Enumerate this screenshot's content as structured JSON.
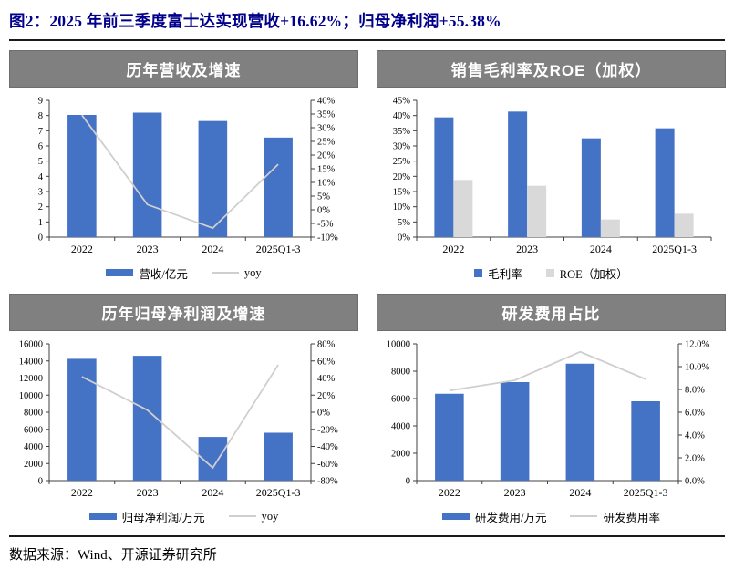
{
  "figure": {
    "title": "图2：2025 年前三季度富士达实现营收+16.62%；归母净利润+55.38%",
    "source": "数据来源：Wind、开源证券研究所"
  },
  "colors": {
    "accent_blue": "#4472C4",
    "bar_gray": "#D9D9D9",
    "line_gray": "#D0CECE",
    "header_bg": "#808080",
    "header_text": "#FFFFFF",
    "title_text": "#00008B"
  },
  "chart_data": [
    {
      "id": "revenue-growth",
      "type": "bar",
      "title": "历年营收及增速",
      "categories": [
        "2022",
        "2023",
        "2024",
        "2025Q1-3"
      ],
      "series": [
        {
          "name": "营收/亿元",
          "type": "bar",
          "axis": "left",
          "color": "#4472C4",
          "values": [
            8.04,
            8.19,
            7.64,
            6.55
          ]
        },
        {
          "name": "yoy",
          "type": "line",
          "axis": "right",
          "color": "#D0CECE",
          "values": [
            34.6,
            1.9,
            -6.7,
            16.62
          ]
        }
      ],
      "left_axis": {
        "min": 0,
        "max": 9,
        "tick_values": [
          0,
          1,
          2,
          3,
          4,
          5,
          6,
          7,
          8,
          9
        ],
        "tick_labels": [
          "0",
          "1",
          "2",
          "3",
          "4",
          "5",
          "6",
          "7",
          "8",
          "9"
        ]
      },
      "right_axis": {
        "min": -10,
        "max": 40,
        "tick_values": [
          -10,
          -5,
          0,
          5,
          10,
          15,
          20,
          25,
          30,
          35,
          40
        ],
        "tick_labels": [
          "-10%",
          "-5%",
          "0%",
          "5%",
          "10%",
          "15%",
          "20%",
          "25%",
          "30%",
          "35%",
          "40%"
        ]
      },
      "legend": [
        {
          "label": "营收/亿元",
          "swatch": "bar",
          "color": "#4472C4"
        },
        {
          "label": "yoy",
          "swatch": "line",
          "color": "#D0CECE"
        }
      ]
    },
    {
      "id": "margin-roe",
      "type": "bar",
      "title": "销售毛利率及ROE（加权）",
      "categories": [
        "2022",
        "2023",
        "2024",
        "2025Q1-3"
      ],
      "series": [
        {
          "name": "毛利率",
          "type": "bar",
          "axis": "left",
          "color": "#4472C4",
          "values": [
            39.4,
            41.3,
            32.5,
            35.8
          ]
        },
        {
          "name": "ROE（加权）",
          "type": "bar",
          "axis": "left",
          "color": "#D9D9D9",
          "values": [
            18.8,
            16.9,
            5.8,
            7.7
          ]
        }
      ],
      "left_axis": {
        "min": 0,
        "max": 45,
        "tick_values": [
          0,
          5,
          10,
          15,
          20,
          25,
          30,
          35,
          40,
          45
        ],
        "tick_labels": [
          "0%",
          "5%",
          "10%",
          "15%",
          "20%",
          "25%",
          "30%",
          "35%",
          "40%",
          "45%"
        ]
      },
      "right_axis": null,
      "legend": [
        {
          "label": "毛利率",
          "swatch": "square",
          "color": "#4472C4"
        },
        {
          "label": "ROE（加权）",
          "swatch": "square",
          "color": "#D9D9D9"
        }
      ]
    },
    {
      "id": "net-profit-growth",
      "type": "bar",
      "title": "历年归母净利润及增速",
      "categories": [
        "2022",
        "2023",
        "2024",
        "2025Q1-3"
      ],
      "series": [
        {
          "name": "归母净利润/万元",
          "type": "bar",
          "axis": "left",
          "color": "#4472C4",
          "values": [
            14250,
            14600,
            5110,
            5600
          ]
        },
        {
          "name": "yoy",
          "type": "line",
          "axis": "right",
          "color": "#D0CECE",
          "values": [
            41.5,
            2.5,
            -65.0,
            55.38
          ]
        }
      ],
      "left_axis": {
        "min": 0,
        "max": 16000,
        "tick_values": [
          0,
          2000,
          4000,
          6000,
          8000,
          10000,
          12000,
          14000,
          16000
        ],
        "tick_labels": [
          "0",
          "2000",
          "4000",
          "6000",
          "8000",
          "10000",
          "12000",
          "14000",
          "16000"
        ]
      },
      "right_axis": {
        "min": -80,
        "max": 80,
        "tick_values": [
          -80,
          -60,
          -40,
          -20,
          0,
          20,
          40,
          60,
          80
        ],
        "tick_labels": [
          "-80%",
          "-60%",
          "-40%",
          "-20%",
          "0%",
          "20%",
          "40%",
          "60%",
          "80%"
        ]
      },
      "legend": [
        {
          "label": "归母净利润/万元",
          "swatch": "bar",
          "color": "#4472C4"
        },
        {
          "label": "yoy",
          "swatch": "line",
          "color": "#D0CECE"
        }
      ]
    },
    {
      "id": "rnd-expense",
      "type": "bar",
      "title": "研发费用占比",
      "categories": [
        "2022",
        "2023",
        "2024",
        "2025Q1-3"
      ],
      "series": [
        {
          "name": "研发费用/万元",
          "type": "bar",
          "axis": "left",
          "color": "#4472C4",
          "values": [
            6350,
            7200,
            8550,
            5800
          ]
        },
        {
          "name": "研发费用率",
          "type": "line",
          "axis": "right",
          "color": "#D0CECE",
          "values": [
            7.9,
            8.8,
            11.3,
            8.9
          ]
        }
      ],
      "left_axis": {
        "min": 0,
        "max": 10000,
        "tick_values": [
          0,
          2000,
          4000,
          6000,
          8000,
          10000
        ],
        "tick_labels": [
          "0",
          "2000",
          "4000",
          "6000",
          "8000",
          "10000"
        ]
      },
      "right_axis": {
        "min": 0,
        "max": 12,
        "tick_values": [
          0,
          2,
          4,
          6,
          8,
          10,
          12
        ],
        "tick_labels": [
          "0.0%",
          "2.0%",
          "4.0%",
          "6.0%",
          "8.0%",
          "10.0%",
          "12.0%"
        ]
      },
      "legend": [
        {
          "label": "研发费用/万元",
          "swatch": "bar",
          "color": "#4472C4"
        },
        {
          "label": "研发费用率",
          "swatch": "line",
          "color": "#D0CECE"
        }
      ]
    }
  ]
}
